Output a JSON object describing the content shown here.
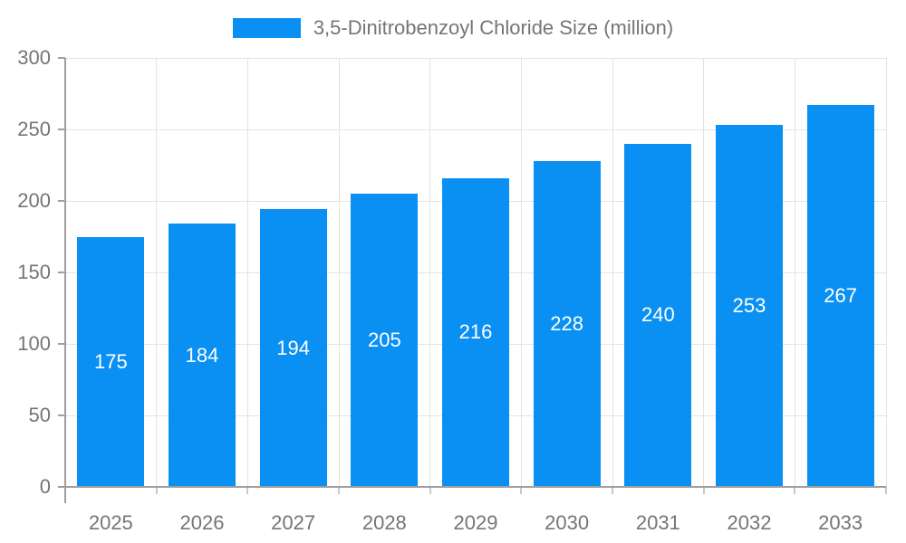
{
  "chart_data": {
    "type": "bar",
    "legend": "3,5-Dinitrobenzoyl Chloride Size (million)",
    "legend_position": "top",
    "categories": [
      "2025",
      "2026",
      "2027",
      "2028",
      "2029",
      "2030",
      "2031",
      "2032",
      "2033"
    ],
    "values": [
      175,
      184,
      194,
      205,
      216,
      228,
      240,
      253,
      267
    ],
    "title": "",
    "xlabel": "",
    "ylabel": "",
    "ylim": [
      0,
      300
    ],
    "ytick_step": 50,
    "ytick_labels": [
      "0",
      "50",
      "100",
      "150",
      "200",
      "250",
      "300"
    ],
    "grid": true,
    "colors": {
      "bar": "#0a90f2",
      "grid": "#e3e3e3",
      "axis": "#9e9e9e",
      "boundary_tick": "#c9c9c9",
      "tick_label": "#757575",
      "value_label": "#ffffff",
      "background": "#ffffff"
    }
  }
}
